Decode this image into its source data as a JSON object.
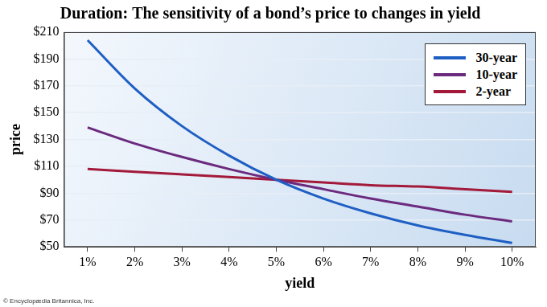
{
  "chart_data": {
    "type": "line",
    "title": "Duration: The sensitivity of a bond’s price to changes in yield",
    "x_label": "yield",
    "y_label": "price",
    "credit": "© Encyclopædia Britannica, Inc.",
    "categories": [
      "1%",
      "2%",
      "3%",
      "4%",
      "5%",
      "6%",
      "7%",
      "8%",
      "9%",
      "10%"
    ],
    "series": [
      {
        "name": "30-year",
        "color": "#1f5fc4",
        "values": [
          204,
          168,
          140,
          118,
          100,
          86,
          75,
          66,
          59,
          53
        ]
      },
      {
        "name": "10-year",
        "color": "#6b2a7e",
        "values": [
          139,
          127,
          117,
          108,
          100,
          93,
          86,
          80,
          74,
          69
        ]
      },
      {
        "name": "2-year",
        "color": "#a3193a",
        "values": [
          108,
          106,
          104,
          102,
          100,
          98,
          96,
          95,
          93,
          91
        ]
      }
    ],
    "ylim": [
      50,
      210
    ],
    "yticks": [
      {
        "value": 50,
        "label": "$50"
      },
      {
        "value": 70,
        "label": "$70"
      },
      {
        "value": 90,
        "label": "$90"
      },
      {
        "value": 110,
        "label": "$110"
      },
      {
        "value": 130,
        "label": "$130"
      },
      {
        "value": 150,
        "label": "$150"
      },
      {
        "value": 170,
        "label": "$170"
      },
      {
        "value": 190,
        "label": "$190"
      },
      {
        "value": 210,
        "label": "$210"
      }
    ],
    "grid": true,
    "legend": "top-right"
  }
}
